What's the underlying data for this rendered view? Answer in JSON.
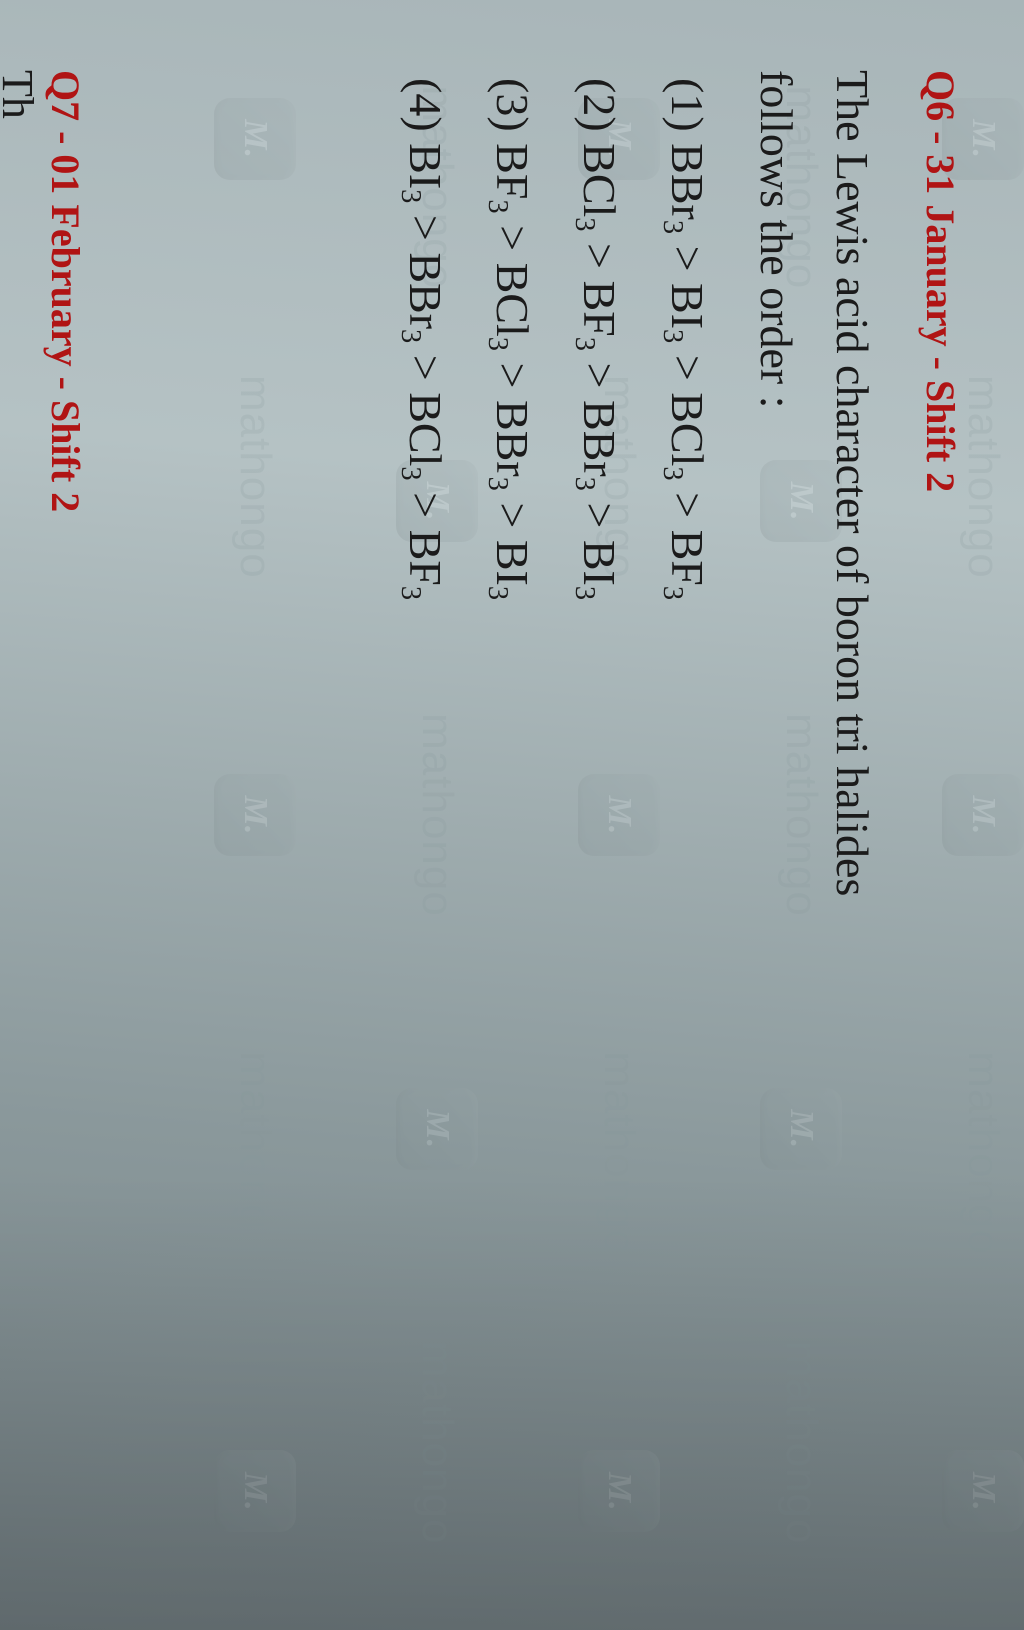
{
  "q6": {
    "header": "Q6 - 31 January - Shift 2",
    "color": "#b01414",
    "stem_line1": "The Lewis acid character of boron tri halides",
    "stem_line2": "follows the order :",
    "options": {
      "o1": "(1) BBr₃ > BI₃ > BCl₃ > BF₃",
      "o2": "(2) BCl₃ > BF₃ > BBr₃ > BI₃",
      "o3": "(3) BF₃ > BCl₃ > BBr₃ > BI₃",
      "o4": "(4) BI₃ > BBr₃ > BCl₃ > BF₃"
    }
  },
  "q7": {
    "header": "Q7 - 01 February - Shift 2",
    "color": "#b01414",
    "cutoff": "Th"
  },
  "watermark": {
    "logo_text": "M.",
    "word": "mathongo"
  },
  "style": {
    "body_font": "Georgia, Times New Roman, serif",
    "header_fontsize": 40,
    "stem_fontsize": 46,
    "option_fontsize": 46,
    "text_color": "#1b1b1b",
    "background_gradient": [
      "#a8b5b8",
      "#b5c2c4",
      "#8a989b",
      "#748084"
    ],
    "watermark_opacity": 0.18,
    "watermark_text_color": "#86979a"
  }
}
